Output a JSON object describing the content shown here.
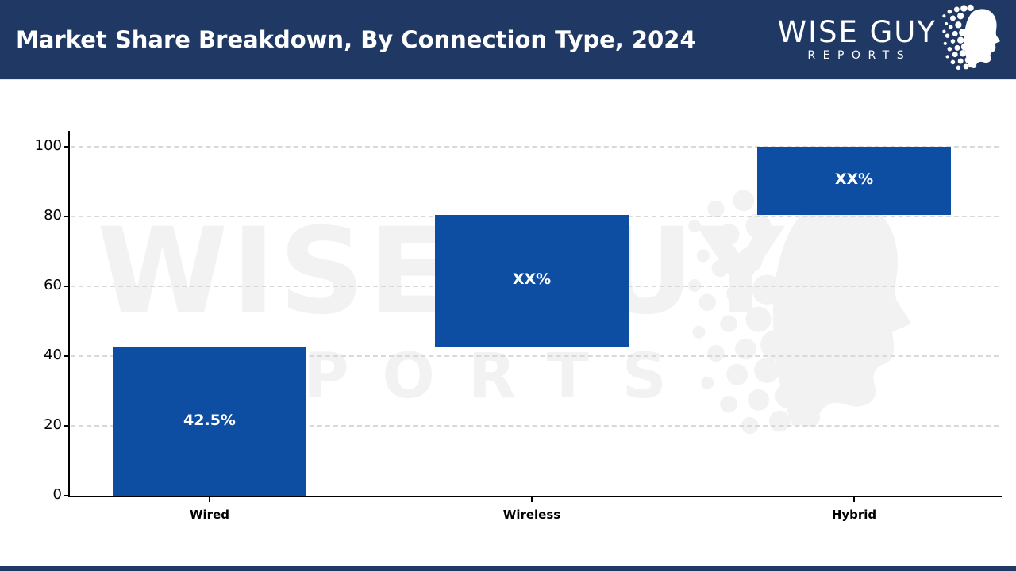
{
  "header": {
    "title": "Market Share Breakdown, By Connection Type, 2024",
    "logo": {
      "line1": "WISE GUY",
      "line2": "REPORTS"
    }
  },
  "watermark": {
    "line1": "WISE GUY",
    "line2": "REPORTS"
  },
  "chart_data": {
    "type": "bar",
    "variant": "waterfall",
    "title": "Market Share Breakdown, By Connection Type, 2024",
    "categories": [
      "Wired",
      "Wireless",
      "Hybrid"
    ],
    "segments": [
      {
        "category": "Wired",
        "start": 0,
        "end": 42.5,
        "label": "42.5%"
      },
      {
        "category": "Wireless",
        "start": 42.5,
        "end": 80.5,
        "label": "XX%"
      },
      {
        "category": "Hybrid",
        "start": 80.5,
        "end": 100,
        "label": "XX%"
      }
    ],
    "yticks": [
      0,
      20,
      40,
      60,
      80,
      100
    ],
    "ylim": [
      0,
      100
    ],
    "xlabel": "",
    "ylabel": "",
    "grid": "horizontal-dashed",
    "legend_position": "none",
    "bar_color": "#0d4da2"
  },
  "colors": {
    "header_bg": "#203864",
    "footer_bg": "#203864",
    "bar": "#0d4da2",
    "gridline": "#d9d9d9",
    "watermark": "#f2f2f2",
    "axis": "#000000",
    "title_text": "#ffffff",
    "bar_label_text": "#ffffff"
  }
}
